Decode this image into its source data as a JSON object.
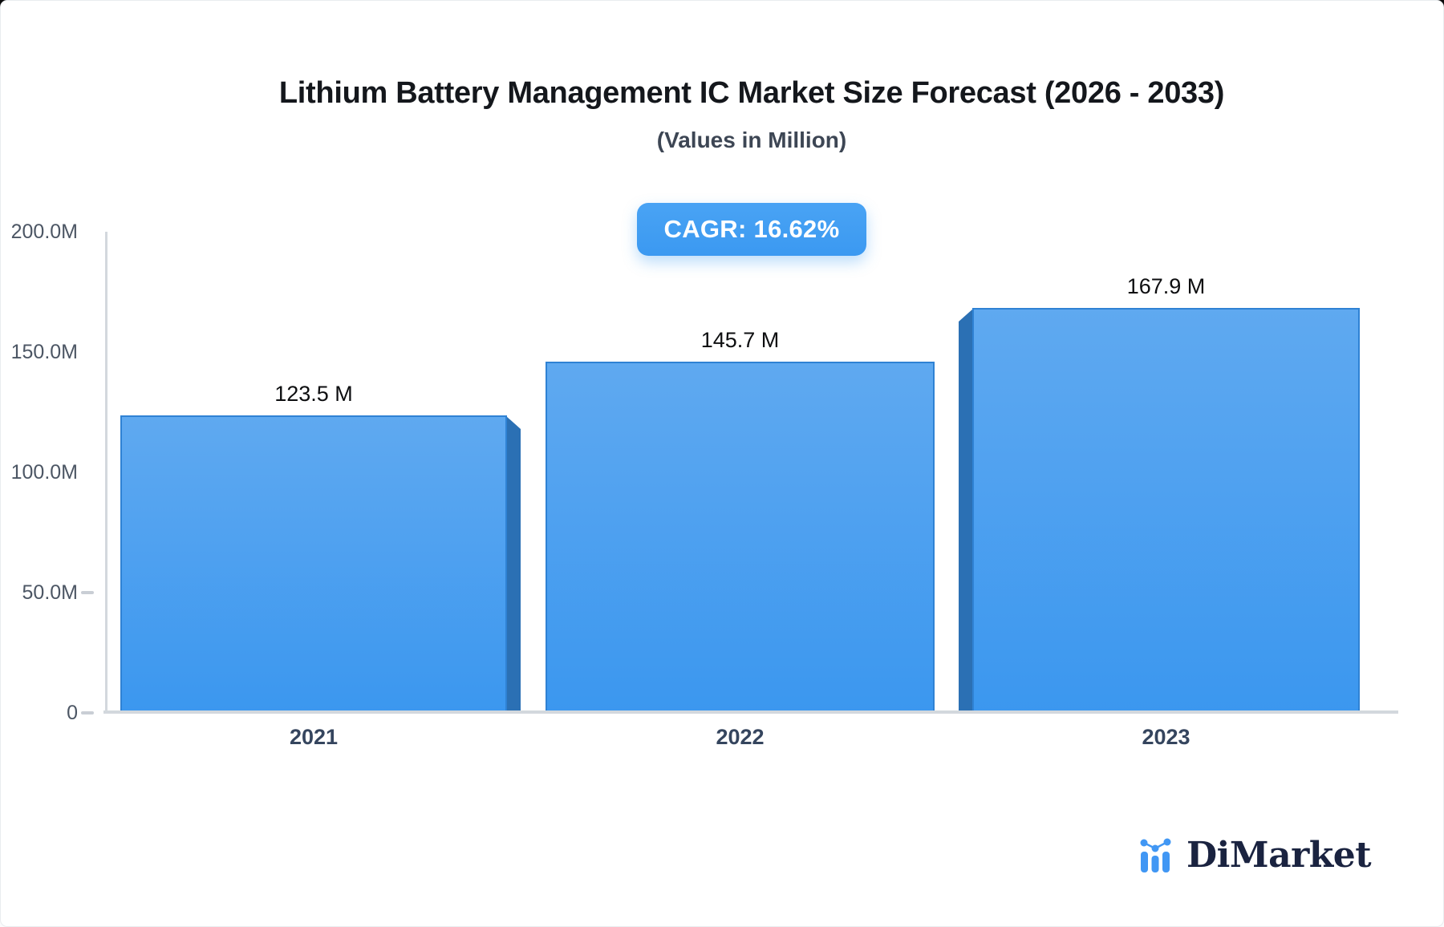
{
  "header": {
    "title": "Lithium Battery Management IC Market Size Forecast (2026 - 2033)",
    "subtitle": "(Values in Million)",
    "cagr_badge_label": "CAGR: 16.62%"
  },
  "chart_data": {
    "type": "bar",
    "title": "Lithium Battery Management IC Market Size Forecast (2026 - 2033)",
    "subtitle": "(Values in Million)",
    "unit": "Million",
    "categories": [
      "2021",
      "2022",
      "2023"
    ],
    "values": [
      123.5,
      145.7,
      167.9
    ],
    "value_labels": [
      "123.5 M",
      "145.7 M",
      "167.9 M"
    ],
    "cagr_percent": 16.62,
    "ylim": [
      0,
      200
    ],
    "yticks": [
      200,
      150,
      100,
      50,
      0
    ],
    "ytick_labels": [
      "200.0M",
      "150.0M",
      "100.0M",
      "50.0M",
      "0"
    ],
    "ytick_dash_rows": [
      50,
      0
    ],
    "grid": false,
    "legend": false
  },
  "brand": {
    "name": "DiMarket",
    "icon": "bar-chart-logo-icon"
  },
  "colors": {
    "accent_blue": "#3f9ef2",
    "bar_gradient_top": "#5fa9f0",
    "bar_gradient_bottom": "#3b97ef",
    "bar_stroke": "#2f82d4",
    "bar_side_face": "#2b70b4",
    "axis_line": "#d3d8dd",
    "tick_dash": "#c9ced5",
    "title_text": "#14171c",
    "subtitle_text": "#3d4654",
    "ytick_text": "#4c5664",
    "category_text": "#35455e",
    "value_text": "#0d0e10",
    "brand_navy": "#1a2340",
    "brand_blue": "#4197f4"
  }
}
